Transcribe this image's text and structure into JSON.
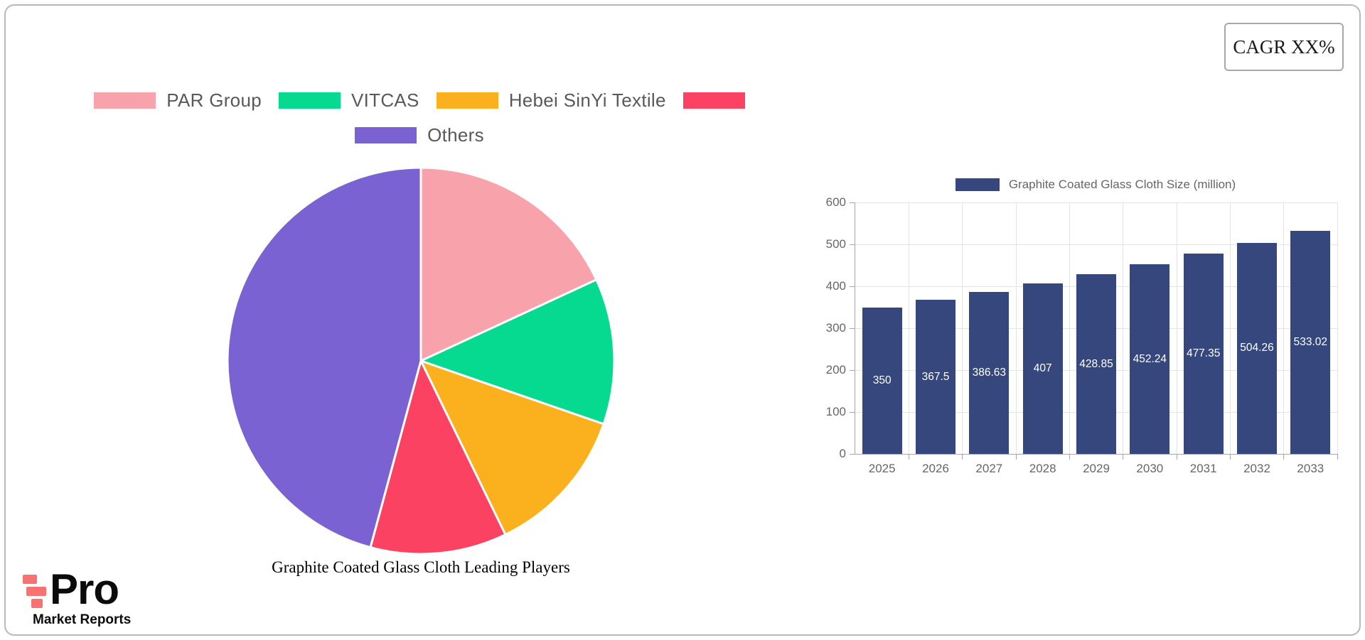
{
  "cagr_box": {
    "label": "CAGR XX%"
  },
  "logo": {
    "title": "Pro",
    "subtitle": "Market Reports",
    "bar_color": "#f87272"
  },
  "chart_data": [
    {
      "type": "pie",
      "title": "Graphite Coated Glass Cloth Leading Players",
      "legend_position": "top",
      "legend_wrap_after": 4,
      "labels": [
        "PAR Group",
        "VITCAS",
        "Hebei SinYi Textile",
        "",
        "Others"
      ],
      "values_percent": [
        18.1,
        12.2,
        12.5,
        11.4,
        45.8
      ],
      "colors": [
        "#f8a3ab",
        "#06da91",
        "#fbb11d",
        "#fc4262",
        "#7a62d2"
      ],
      "start_angle_deg": 0,
      "direction": "clockwise",
      "divider_color": "#ffffff"
    },
    {
      "type": "bar",
      "legend_label": "Graphite Coated Glass Cloth Size (million)",
      "categories": [
        "2025",
        "2026",
        "2027",
        "2028",
        "2029",
        "2030",
        "2031",
        "2032",
        "2033"
      ],
      "values": [
        350,
        367.5,
        386.63,
        407,
        428.85,
        452.24,
        477.35,
        504.26,
        533.02
      ],
      "value_labels": [
        "350",
        "367.5",
        "386.63",
        "407",
        "428.85",
        "452.24",
        "477.35",
        "504.26",
        "533.02"
      ],
      "bar_color": "#35477d",
      "ylim": [
        0,
        600
      ],
      "yticks": [
        0,
        100,
        200,
        300,
        400,
        500,
        600
      ],
      "grid": true,
      "legend_position": "top",
      "value_label_color": "#ffffff",
      "axis_text_color": "#666666"
    }
  ]
}
